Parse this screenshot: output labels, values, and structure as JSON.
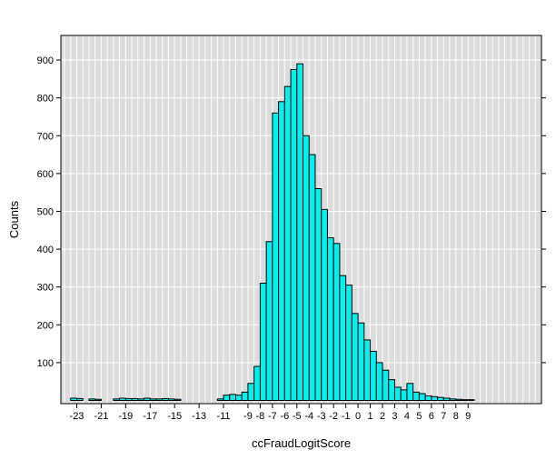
{
  "chart_data": {
    "type": "bar",
    "subtype": "histogram",
    "title": "",
    "xlabel": "ccFraudLogitScore",
    "ylabel": "Counts",
    "xlim": [
      -24.3,
      15.0
    ],
    "ylim": [
      0,
      965
    ],
    "bin_width": 0.5,
    "grid": true,
    "legend": "none",
    "x_tick_labels": [
      -23,
      -21,
      -19,
      -17,
      -15,
      -13,
      -11,
      -9,
      -8,
      -7,
      -6,
      -5,
      -4,
      -3,
      -2,
      -1,
      0,
      1,
      2,
      3,
      4,
      5,
      6,
      7,
      8,
      9
    ],
    "y_ticks": [
      100,
      200,
      300,
      400,
      500,
      600,
      700,
      800,
      900
    ],
    "bars": {
      "bin_left": [
        -23.5,
        -23,
        -22,
        -21.5,
        -20,
        -19.5,
        -19,
        -18.5,
        -18,
        -17.5,
        -17,
        -16.5,
        -16,
        -15.5,
        -15,
        -11.5,
        -11,
        -10.5,
        -10,
        -9.5,
        -9,
        -8.5,
        -8,
        -7.5,
        -7,
        -6.5,
        -6,
        -5.5,
        -5,
        -4.5,
        -4,
        -3.5,
        -3,
        -2.5,
        -2,
        -1.5,
        -1,
        -0.5,
        0,
        0.5,
        1,
        1.5,
        2,
        2.5,
        3,
        3.5,
        4,
        4.5,
        5,
        5.5,
        6,
        6.5,
        7,
        7.5,
        8,
        8.5,
        9
      ],
      "counts": [
        6,
        5,
        4,
        3,
        4,
        6,
        5,
        5,
        4,
        6,
        4,
        4,
        5,
        4,
        3,
        4,
        14,
        16,
        14,
        22,
        45,
        90,
        310,
        420,
        760,
        790,
        830,
        875,
        890,
        700,
        650,
        560,
        505,
        430,
        415,
        330,
        305,
        230,
        205,
        160,
        130,
        100,
        80,
        55,
        35,
        28,
        45,
        22,
        18,
        12,
        10,
        8,
        6,
        4,
        3,
        2,
        2
      ]
    },
    "colors": {
      "bar_fill": "#00EFEF",
      "bar_stroke": "#000000",
      "panel_bg": "#DCDCDC",
      "grid": "#FFFFFF",
      "frame": "#000000",
      "page_bg": "#FFFFFF",
      "text": "#000000"
    }
  }
}
